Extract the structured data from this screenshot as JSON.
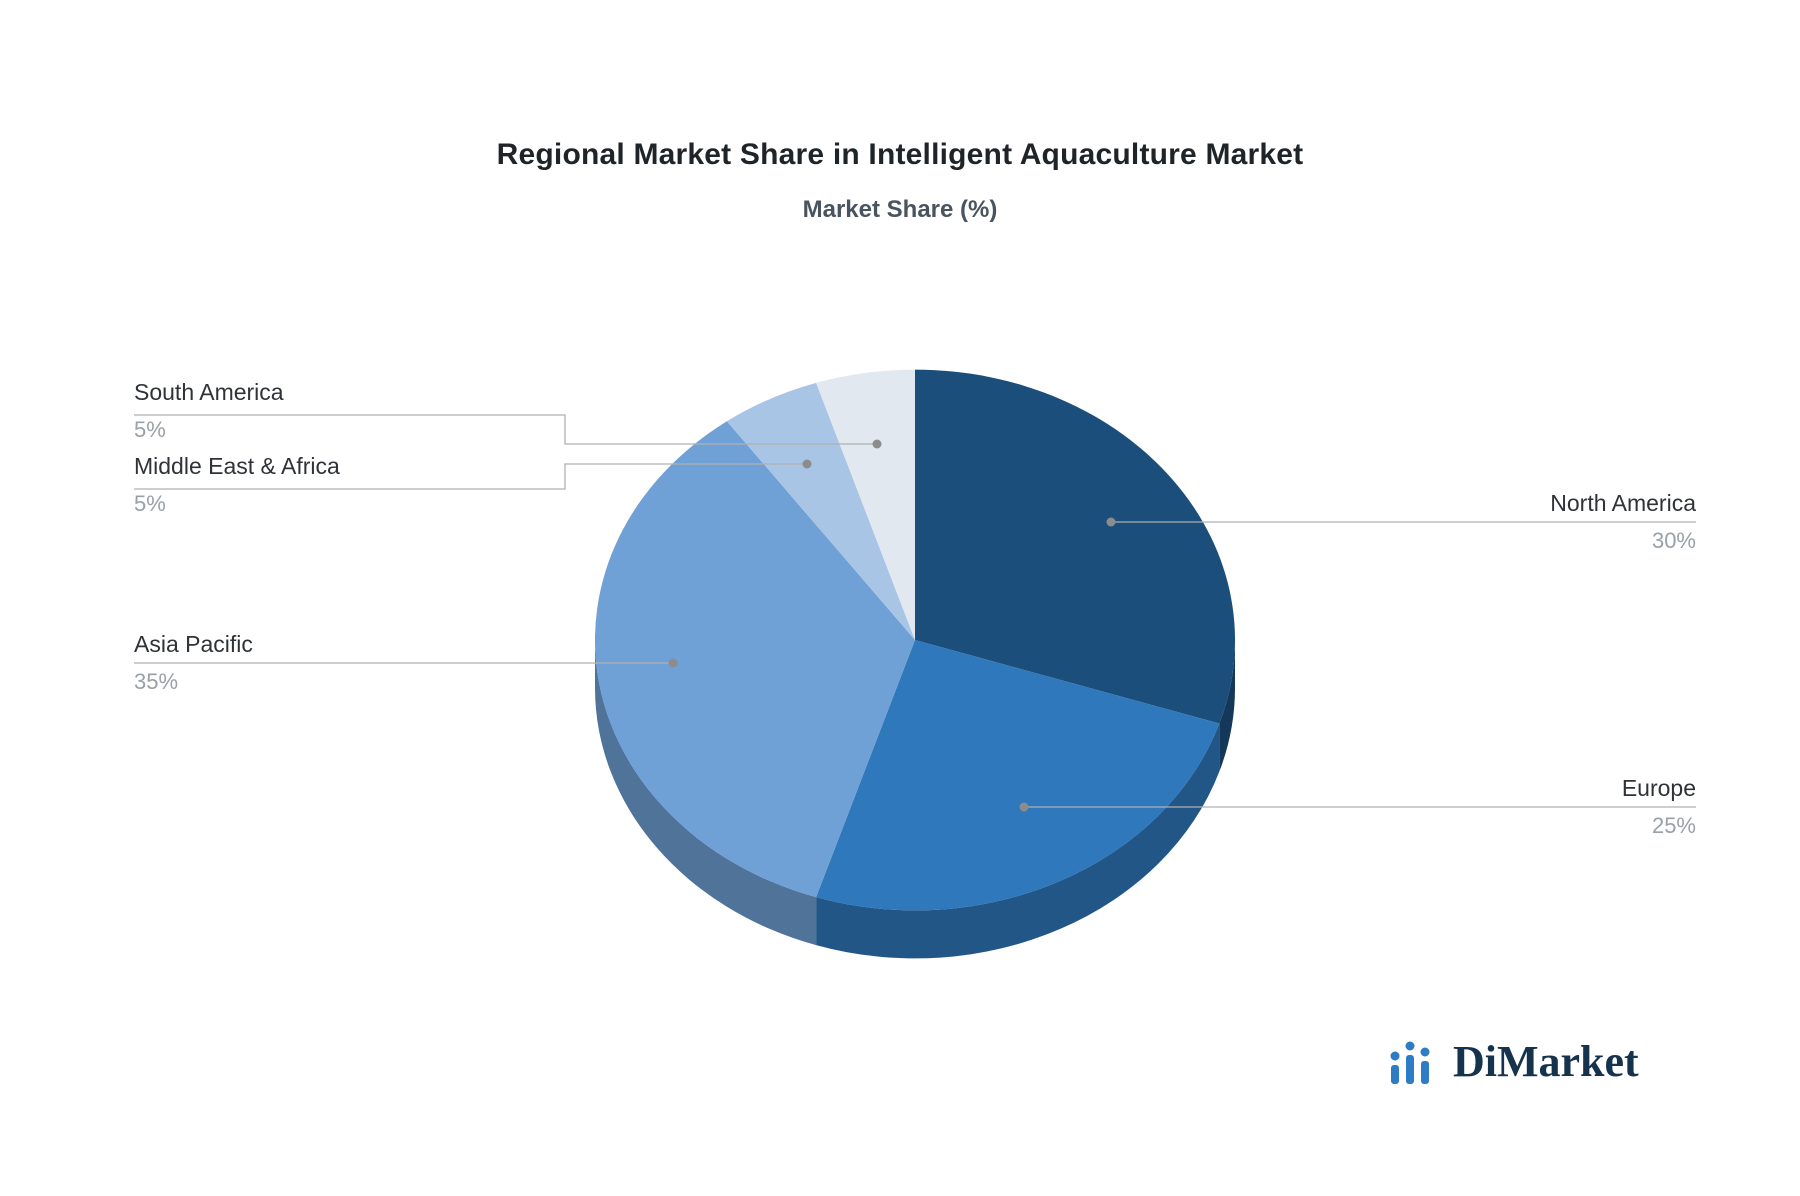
{
  "page": {
    "background": "#ffffff"
  },
  "chart_data": {
    "type": "pie",
    "title": "Regional Market Share in Intelligent Aquaculture Market",
    "subtitle": "Market Share (%)",
    "unit": "%",
    "start_angle_deg": 270,
    "direction": "clockwise",
    "style": "3d-pie",
    "legend": "none",
    "slices": [
      {
        "label": "North America",
        "value": 30,
        "pct_label": "30%",
        "color": "#1c4e7c"
      },
      {
        "label": "Europe",
        "value": 25,
        "pct_label": "25%",
        "color": "#2e78bb"
      },
      {
        "label": "Asia Pacific",
        "value": 35,
        "pct_label": "35%",
        "color": "#6fa0d6"
      },
      {
        "label": "Middle East & Africa",
        "value": 5,
        "pct_label": "5%",
        "color": "#a8c5e6"
      },
      {
        "label": "South America",
        "value": 5,
        "pct_label": "5%",
        "color": "#e2e8f0"
      }
    ],
    "leader_line_color": "#b0b0b0",
    "leader_dot_color": "#8c8c8c"
  },
  "logo": {
    "text": "DiMarket",
    "icon": "bar-chart-dots-icon",
    "accent_color": "#2e7cc3",
    "text_color": "#16334e"
  }
}
